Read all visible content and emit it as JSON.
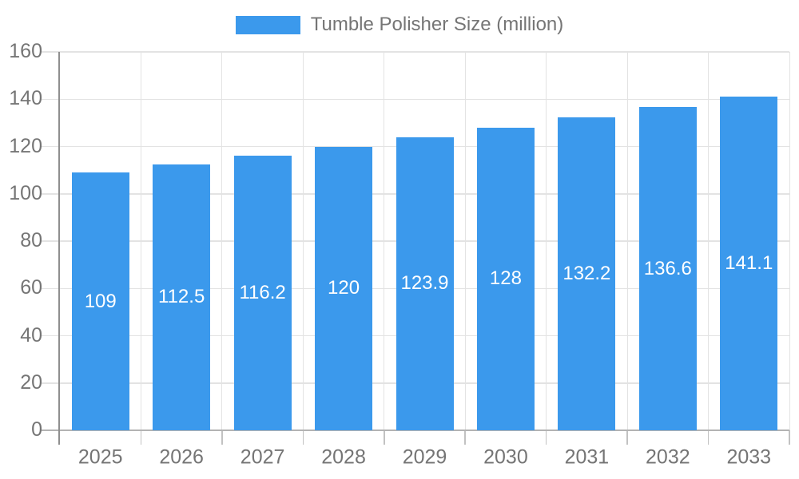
{
  "legend": {
    "label": "Tumble Polisher Size (million)"
  },
  "chart_data": {
    "type": "bar",
    "title": "",
    "xlabel": "",
    "ylabel": "",
    "series_name": "Tumble Polisher Size (million)",
    "categories": [
      "2025",
      "2026",
      "2027",
      "2028",
      "2029",
      "2030",
      "2031",
      "2032",
      "2033"
    ],
    "values": [
      109,
      112.5,
      116.2,
      120,
      123.9,
      128,
      132.2,
      136.6,
      141.1
    ],
    "value_labels": [
      "109",
      "112.5",
      "116.2",
      "120",
      "123.9",
      "128",
      "132.2",
      "136.6",
      "141.1"
    ],
    "ylim": [
      0,
      160
    ],
    "ytick_step": 20,
    "yticks": [
      "0",
      "20",
      "40",
      "60",
      "80",
      "100",
      "120",
      "140",
      "160"
    ],
    "grid": true,
    "legend_position": "top-center",
    "colors": {
      "bar": "#3b99ec",
      "bar_value_label": "#ffffff",
      "axis_text": "#757575",
      "gridline": "#e3e3e3",
      "x_axis_line": "#b3b3b3",
      "y_axis_line": "#8f8f8f",
      "axis_tick": "#c2c2c2",
      "background": "#ffffff"
    }
  }
}
